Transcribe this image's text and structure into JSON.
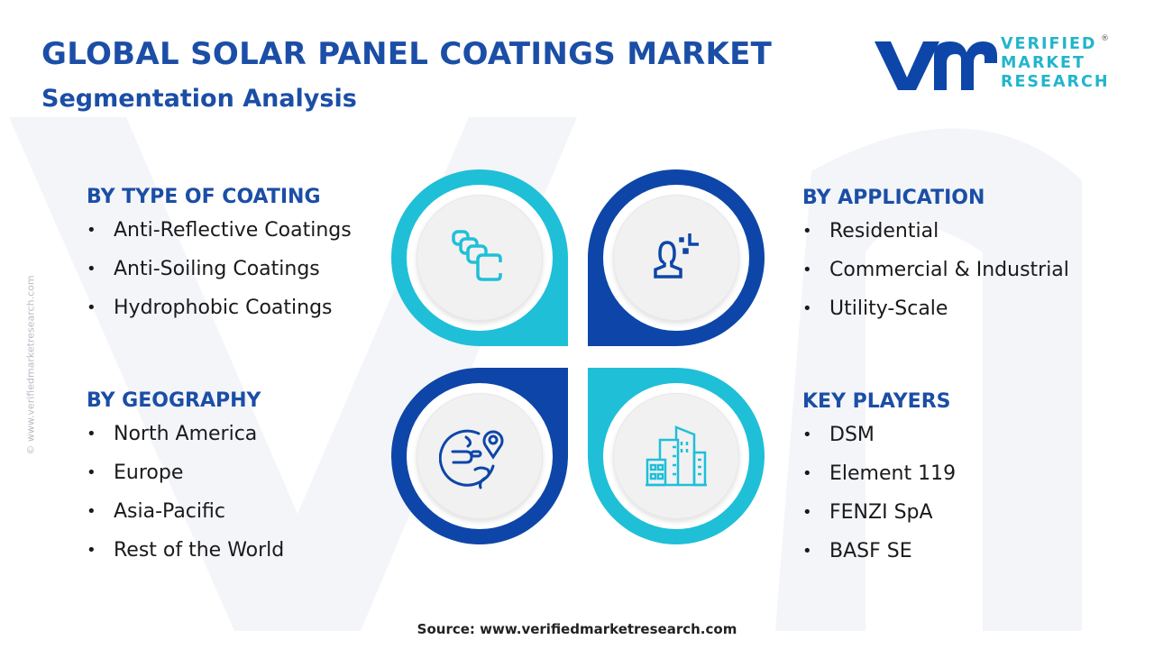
{
  "header": {
    "title": "GLOBAL SOLAR PANEL COATINGS MARKET",
    "subtitle": "Segmentation Analysis"
  },
  "logo": {
    "mark": "vmr",
    "line1": "VERIFIED",
    "line2": "MARKET",
    "line3": "RESEARCH",
    "registered": "®"
  },
  "side_url": "© www.verifiedmarketresearch.com",
  "segments": {
    "type": {
      "heading": "BY TYPE OF COATING",
      "items": [
        "Anti-Reflective Coatings",
        "Anti-Soiling Coatings",
        "Hydrophobic Coatings"
      ]
    },
    "application": {
      "heading": "BY APPLICATION",
      "items": [
        "Residential",
        "Commercial & Industrial",
        "Utility-Scale"
      ]
    },
    "geography": {
      "heading": "BY GEOGRAPHY",
      "items": [
        "North America",
        "Europe",
        "Asia-Pacific",
        "Rest of the World"
      ]
    },
    "players": {
      "heading": "KEY PLAYERS",
      "items": [
        "DSM",
        "Element 119",
        "FENZI SpA",
        "BASF SE"
      ]
    }
  },
  "icons": [
    "layers-icon",
    "user-icon",
    "globe-location-icon",
    "buildings-icon"
  ],
  "colors": {
    "navy": "#0d46a8",
    "cyan": "#1fbfd8",
    "title": "#1b4ea6"
  },
  "source": "Source: www.verifiedmarketresearch.com"
}
